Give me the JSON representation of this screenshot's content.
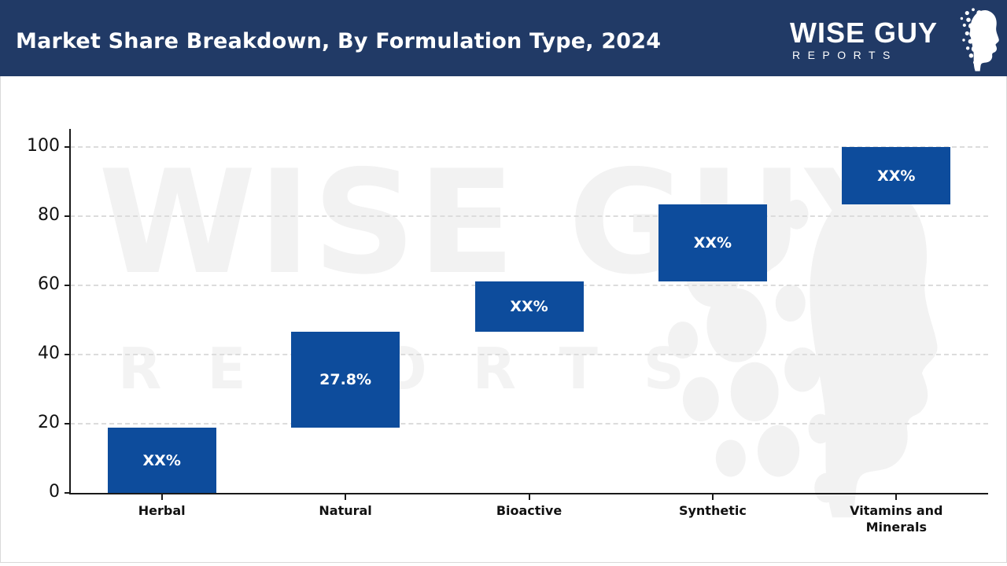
{
  "header": {
    "title": "Market Share Breakdown, By Formulation Type, 2024",
    "brand_color": "#213a66",
    "logo": {
      "line1": "WISE GUY",
      "line2": "REPORTS"
    }
  },
  "watermark": {
    "line1": "WISE GUY",
    "line2": "REPORTS"
  },
  "chart_data": {
    "type": "bar",
    "variant": "waterfall",
    "title": "Market Share Breakdown, By Formulation Type, 2024",
    "categories": [
      "Herbal",
      "Natural",
      "Bioactive",
      "Synthetic",
      "Vitamins and Minerals"
    ],
    "segments": [
      {
        "category": "Herbal",
        "start": 0,
        "end": 18.8,
        "label": "XX%"
      },
      {
        "category": "Natural",
        "start": 18.8,
        "end": 46.6,
        "label": "27.8%"
      },
      {
        "category": "Bioactive",
        "start": 46.6,
        "end": 61.2,
        "label": "XX%"
      },
      {
        "category": "Synthetic",
        "start": 61.2,
        "end": 83.3,
        "label": "XX%"
      },
      {
        "category": "Vitamins and Minerals",
        "start": 83.3,
        "end": 100,
        "label": "XX%"
      }
    ],
    "xlabel": "",
    "ylabel": "",
    "ylim": [
      0,
      100
    ],
    "yticks": [
      0,
      20,
      40,
      60,
      80,
      100
    ],
    "grid": "horizontal-dashed",
    "legend": "none",
    "bar_color": "#0d4c9c",
    "bar_label_color": "#ffffff",
    "axis_color": "#1a1a1a",
    "gridline_color": "#dcdcdc"
  }
}
